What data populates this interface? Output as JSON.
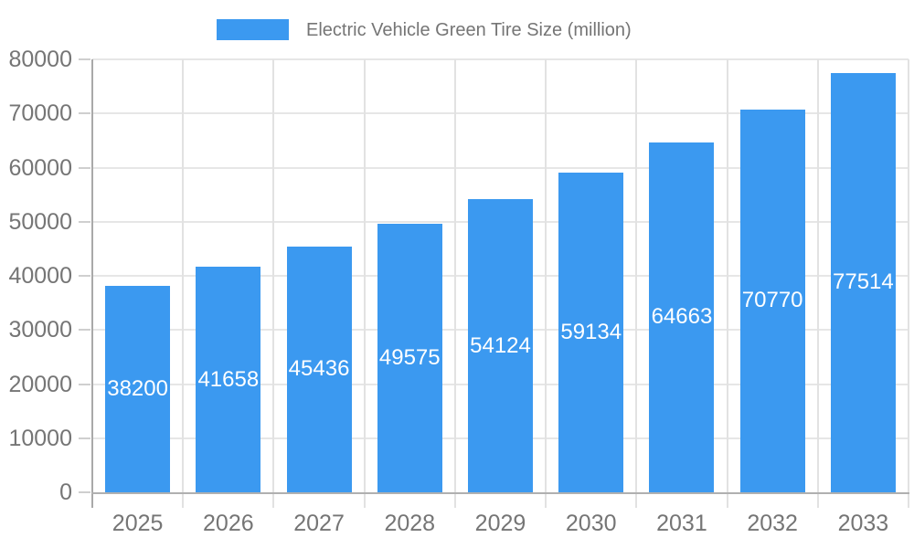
{
  "chart_data": {
    "type": "bar",
    "title": "",
    "legend": "Electric Vehicle Green Tire Size (million)",
    "legend_position": "top",
    "categories": [
      "2025",
      "2026",
      "2027",
      "2028",
      "2029",
      "2030",
      "2031",
      "2032",
      "2033"
    ],
    "values": [
      38200,
      41658,
      45436,
      49575,
      54124,
      59134,
      64663,
      70770,
      77514
    ],
    "xlabel": "",
    "ylabel": "",
    "ylim": [
      0,
      80000
    ],
    "ytick_step": 10000,
    "ytick_labels": [
      "0",
      "10000",
      "20000",
      "30000",
      "40000",
      "50000",
      "60000",
      "70000",
      "80000"
    ],
    "grid": true,
    "bar_color": "#3b99f0",
    "value_label_color": "#ffffff",
    "axis_text_color": "#757575",
    "gridline_color": "#e6e6e6"
  }
}
